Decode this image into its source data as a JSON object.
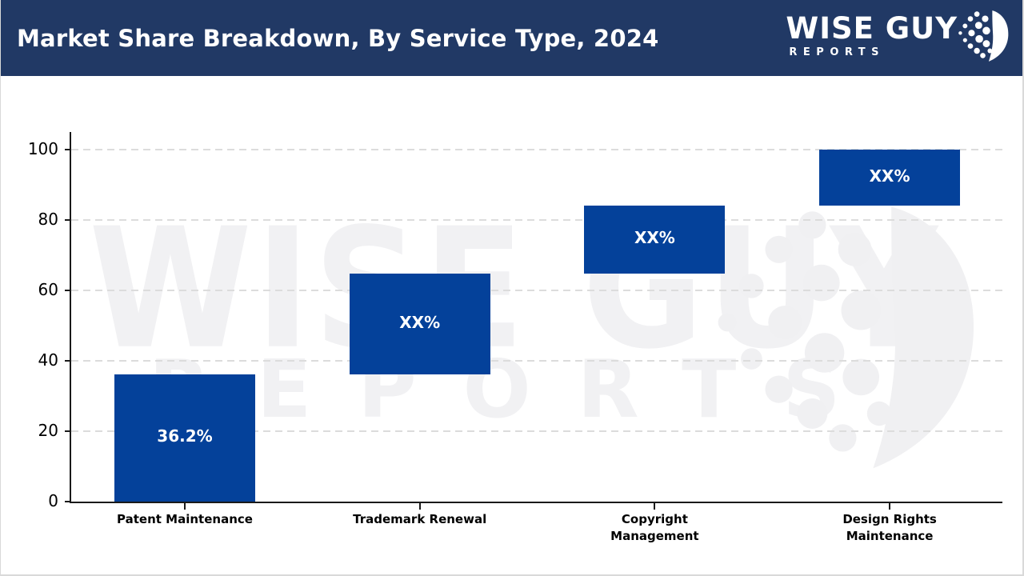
{
  "header": {
    "title": "Market Share Breakdown, By Service Type, 2024",
    "bg_color": "#213965",
    "text_color": "#ffffff",
    "logo": {
      "line1": "WISE GUY",
      "line2": "REPORTS"
    }
  },
  "watermark": {
    "line1": "WISE GUY",
    "line2": "REPORTS"
  },
  "chart_data": {
    "type": "bar",
    "subtype": "waterfall",
    "title": "Market Share Breakdown, By Service Type, 2024",
    "xlabel": "",
    "ylabel": "",
    "categories": [
      "Patent Maintenance",
      "Trademark Renewal",
      "Copyright Management",
      "Design Rights Maintenance"
    ],
    "segments": [
      {
        "start": 0,
        "end": 36.2,
        "value": 36.2,
        "label": "36.2%"
      },
      {
        "start": 36.2,
        "end": 64.8,
        "value": 28.6,
        "label": "XX%"
      },
      {
        "start": 64.8,
        "end": 84.2,
        "value": 19.4,
        "label": "XX%"
      },
      {
        "start": 84.2,
        "end": 100,
        "value": 15.8,
        "label": "XX%"
      }
    ],
    "yticks": [
      0,
      20,
      40,
      60,
      80,
      100
    ],
    "ylim": [
      0,
      105
    ],
    "grid": "dashed-horizontal",
    "legend": "none",
    "bar_color": "#04419a",
    "bar_label_color": "#ffffff",
    "axis_color": "#1a1a1a",
    "grid_color": "#dcdcdc"
  }
}
